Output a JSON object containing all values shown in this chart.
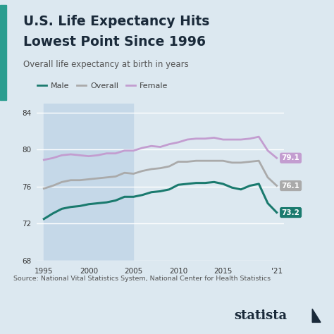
{
  "title_line1": "U.S. Life Expectancy Hits",
  "title_line2": "Lowest Point Since 1996",
  "subtitle": "Overall life expectancy at birth in years",
  "source": "Source: National Vital Statistics System, National Center for Health Statistics",
  "background_color": "#dce8f0",
  "plot_bg_color": "#dce8f0",
  "accent_color": "#2a9d8f",
  "shade_color": "#c5d8e8",
  "years": [
    1995,
    1996,
    1997,
    1998,
    1999,
    2000,
    2001,
    2002,
    2003,
    2004,
    2005,
    2006,
    2007,
    2008,
    2009,
    2010,
    2011,
    2012,
    2013,
    2014,
    2015,
    2016,
    2017,
    2018,
    2019,
    2020,
    2021
  ],
  "male": [
    72.5,
    73.1,
    73.6,
    73.8,
    73.9,
    74.1,
    74.2,
    74.3,
    74.5,
    74.9,
    74.9,
    75.1,
    75.4,
    75.5,
    75.7,
    76.2,
    76.3,
    76.4,
    76.4,
    76.5,
    76.3,
    75.9,
    75.7,
    76.1,
    76.3,
    74.2,
    73.2
  ],
  "overall": [
    75.8,
    76.1,
    76.5,
    76.7,
    76.7,
    76.8,
    76.9,
    77.0,
    77.1,
    77.5,
    77.4,
    77.7,
    77.9,
    78.0,
    78.2,
    78.7,
    78.7,
    78.8,
    78.8,
    78.8,
    78.8,
    78.6,
    78.6,
    78.7,
    78.8,
    77.0,
    76.1
  ],
  "female": [
    78.9,
    79.1,
    79.4,
    79.5,
    79.4,
    79.3,
    79.4,
    79.6,
    79.6,
    79.9,
    79.9,
    80.2,
    80.4,
    80.3,
    80.6,
    80.8,
    81.1,
    81.2,
    81.2,
    81.3,
    81.1,
    81.1,
    81.1,
    81.2,
    81.4,
    79.9,
    79.1
  ],
  "male_color": "#1a7a6e",
  "overall_color": "#aaaaaa",
  "female_color": "#c39dd0",
  "male_label": "Male",
  "overall_label": "Overall",
  "female_label": "Female",
  "ylim": [
    68,
    85
  ],
  "yticks": [
    68,
    72,
    76,
    80,
    84
  ],
  "shade_xstart": 1995,
  "shade_xend": 2005,
  "end_label_male": "73.2",
  "end_label_overall": "76.1",
  "end_label_female": "79.1",
  "title_color": "#1a2a3a",
  "subtitle_color": "#555555",
  "source_color": "#555555"
}
